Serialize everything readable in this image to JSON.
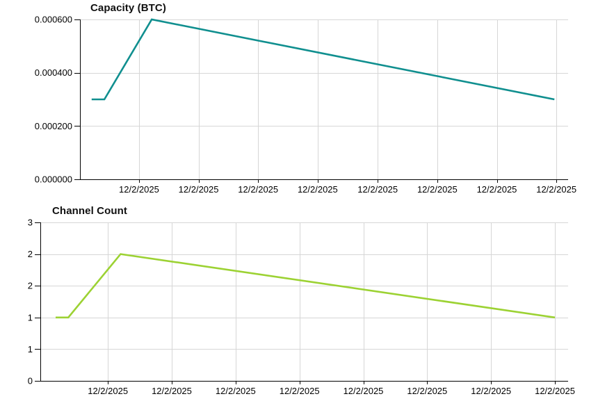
{
  "page": {
    "background": "#ffffff"
  },
  "styles": {
    "grid_color": "#d6d6d6",
    "axis_color": "#000000",
    "text_color": "#000000",
    "capacity_line_color": "#108f8f",
    "channel_line_color": "#9cd233"
  },
  "chart_data": [
    {
      "type": "line",
      "title": "Capacity (BTC)",
      "series_color": "#108f8f",
      "ylim": [
        0,
        0.0006
      ],
      "grid": true,
      "legend": "none",
      "y_ticks": [
        {
          "value": 0.0,
          "label": "0.000000"
        },
        {
          "value": 0.0002,
          "label": "0.000200"
        },
        {
          "value": 0.0004,
          "label": "0.000400"
        },
        {
          "value": 0.0006,
          "label": "0.000600"
        }
      ],
      "x_ticks": [
        {
          "pos": 0.121,
          "label": "12/2/2025"
        },
        {
          "pos": 0.243,
          "label": "12/2/2025"
        },
        {
          "pos": 0.365,
          "label": "12/2/2025"
        },
        {
          "pos": 0.487,
          "label": "12/2/2025"
        },
        {
          "pos": 0.61,
          "label": "12/2/2025"
        },
        {
          "pos": 0.732,
          "label": "12/2/2025"
        },
        {
          "pos": 0.854,
          "label": "12/2/2025"
        },
        {
          "pos": 0.976,
          "label": "12/2/2025"
        }
      ],
      "points": [
        {
          "pos": 0.024,
          "value": 0.0003
        },
        {
          "pos": 0.05,
          "value": 0.0003
        },
        {
          "pos": 0.147,
          "value": 0.0006
        },
        {
          "pos": 0.972,
          "value": 0.0003
        }
      ]
    },
    {
      "type": "line",
      "title": "Channel Count",
      "series_color": "#9cd233",
      "ylim": [
        0,
        2.5
      ],
      "grid": true,
      "legend": "none",
      "y_ticks": [
        {
          "value": 0.0,
          "label": "0"
        },
        {
          "value": 0.5,
          "label": "1"
        },
        {
          "value": 1.0,
          "label": "1"
        },
        {
          "value": 1.5,
          "label": "2"
        },
        {
          "value": 2.0,
          "label": "2"
        },
        {
          "value": 2.5,
          "label": "3"
        }
      ],
      "x_ticks": [
        {
          "pos": 0.128,
          "label": "12/2/2025"
        },
        {
          "pos": 0.249,
          "label": "12/2/2025"
        },
        {
          "pos": 0.37,
          "label": "12/2/2025"
        },
        {
          "pos": 0.491,
          "label": "12/2/2025"
        },
        {
          "pos": 0.612,
          "label": "12/2/2025"
        },
        {
          "pos": 0.733,
          "label": "12/2/2025"
        },
        {
          "pos": 0.854,
          "label": "12/2/2025"
        },
        {
          "pos": 0.975,
          "label": "12/2/2025"
        }
      ],
      "points": [
        {
          "pos": 0.029,
          "value": 1
        },
        {
          "pos": 0.053,
          "value": 1
        },
        {
          "pos": 0.152,
          "value": 2
        },
        {
          "pos": 0.975,
          "value": 1
        }
      ]
    }
  ]
}
